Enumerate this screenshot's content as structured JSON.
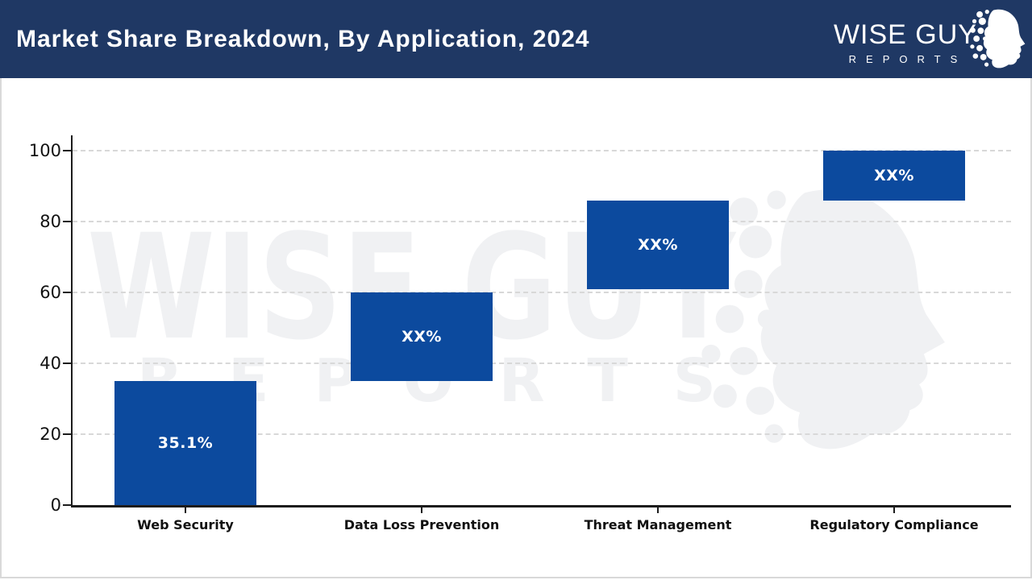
{
  "header": {
    "title": "Market Share Breakdown, By Application, 2024",
    "brand_name": "WISE GUY",
    "brand_sub": "REPORTS"
  },
  "watermark": {
    "line1": "WISE GUY",
    "line2": "REPORTS"
  },
  "chart_data": {
    "type": "bar",
    "variant": "floating_segment_waterfall",
    "title": "Market Share Breakdown, By Application, 2024",
    "categories": [
      "Web Security",
      "Data Loss Prevention",
      "Threat Management",
      "Regulatory Compliance"
    ],
    "bars": [
      {
        "category": "Web Security",
        "start": 0,
        "end": 35.1,
        "label": "35.1%"
      },
      {
        "category": "Data Loss Prevention",
        "start": 35,
        "end": 60,
        "label": "XX%"
      },
      {
        "category": "Threat Management",
        "start": 61,
        "end": 86,
        "label": "XX%"
      },
      {
        "category": "Regulatory Compliance",
        "start": 86,
        "end": 100,
        "label": "XX%"
      }
    ],
    "ylim": [
      0,
      100
    ],
    "yticks": [
      0,
      20,
      40,
      60,
      80,
      100
    ],
    "grid": "horizontal-dashed",
    "bar_color": "#0c4a9e",
    "bar_label_color": "#ffffff"
  },
  "colors": {
    "header_bg": "#1f3864",
    "axis": "#1c1c1c",
    "gridline": "#d8d8d8",
    "watermark": "#f0f1f3",
    "border": "#d9d9d9"
  }
}
